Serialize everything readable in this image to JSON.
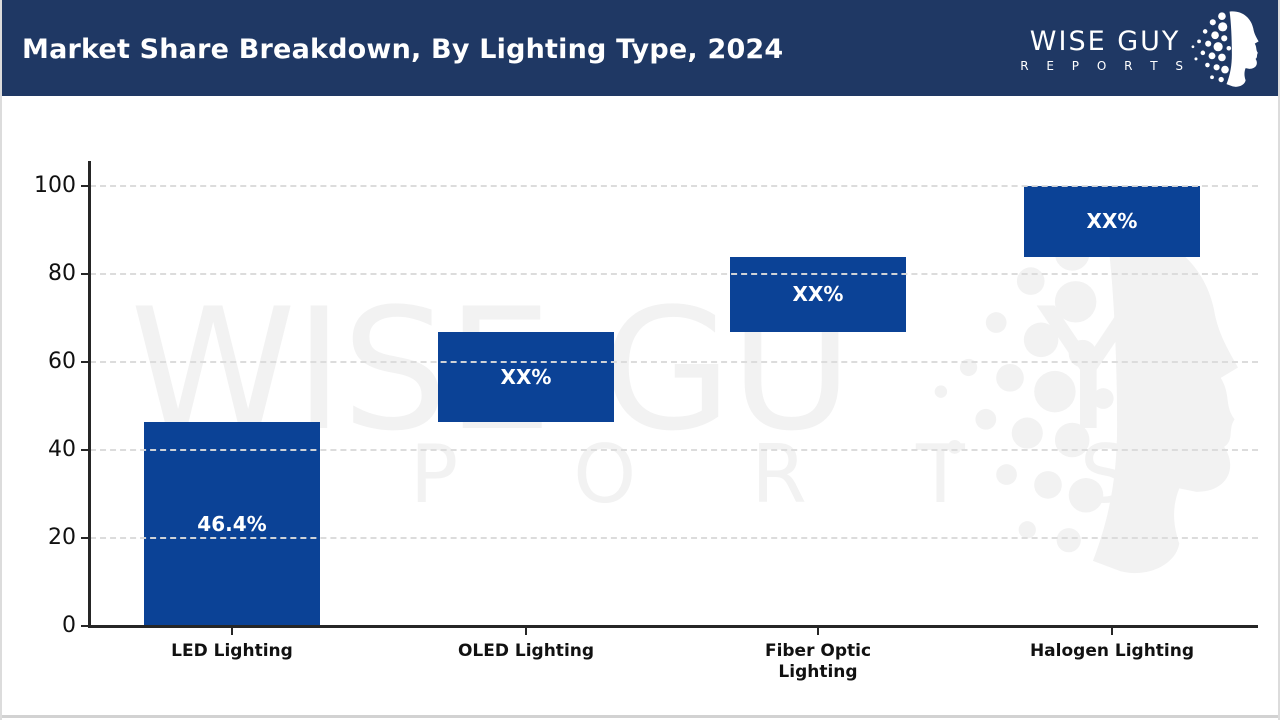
{
  "header": {
    "title": "Market Share Breakdown, By Lighting Type, 2024",
    "logo": {
      "line1": "WISE GUY",
      "line2": "R E P O R T S"
    }
  },
  "watermark": {
    "line1": "WISE GU",
    "letter_y": "Y",
    "line2": "PORTS"
  },
  "chart_data": {
    "type": "bar",
    "subtype": "waterfall",
    "title": "Market Share Breakdown, By Lighting Type, 2024",
    "xlabel": "",
    "ylabel": "",
    "categories": [
      "LED Lighting",
      "OLED Lighting",
      "Fiber Optic\nLighting",
      "Halogen Lighting"
    ],
    "bars": [
      {
        "category": "LED Lighting",
        "start": 0,
        "end": 46.4,
        "label": "46.4%"
      },
      {
        "category": "OLED Lighting",
        "start": 46.4,
        "end": 66.8,
        "label": "XX%"
      },
      {
        "category": "Fiber Optic Lighting",
        "start": 66.8,
        "end": 83.9,
        "label": "XX%"
      },
      {
        "category": "Halogen Lighting",
        "start": 83.9,
        "end": 100,
        "label": "XX%"
      }
    ],
    "yticks": [
      0,
      20,
      40,
      60,
      80,
      100
    ],
    "ylim": [
      0,
      105
    ],
    "grid": "dashed-horizontal",
    "legend": "none",
    "bar_color": "#0b4296",
    "bar_label_color": "#ffffff"
  },
  "colors": {
    "header_bg": "#1f3864",
    "bar": "#0b4296",
    "axis": "#262626",
    "grid": "#dadada",
    "watermark": "#f2f2f2",
    "text": "#111111"
  }
}
